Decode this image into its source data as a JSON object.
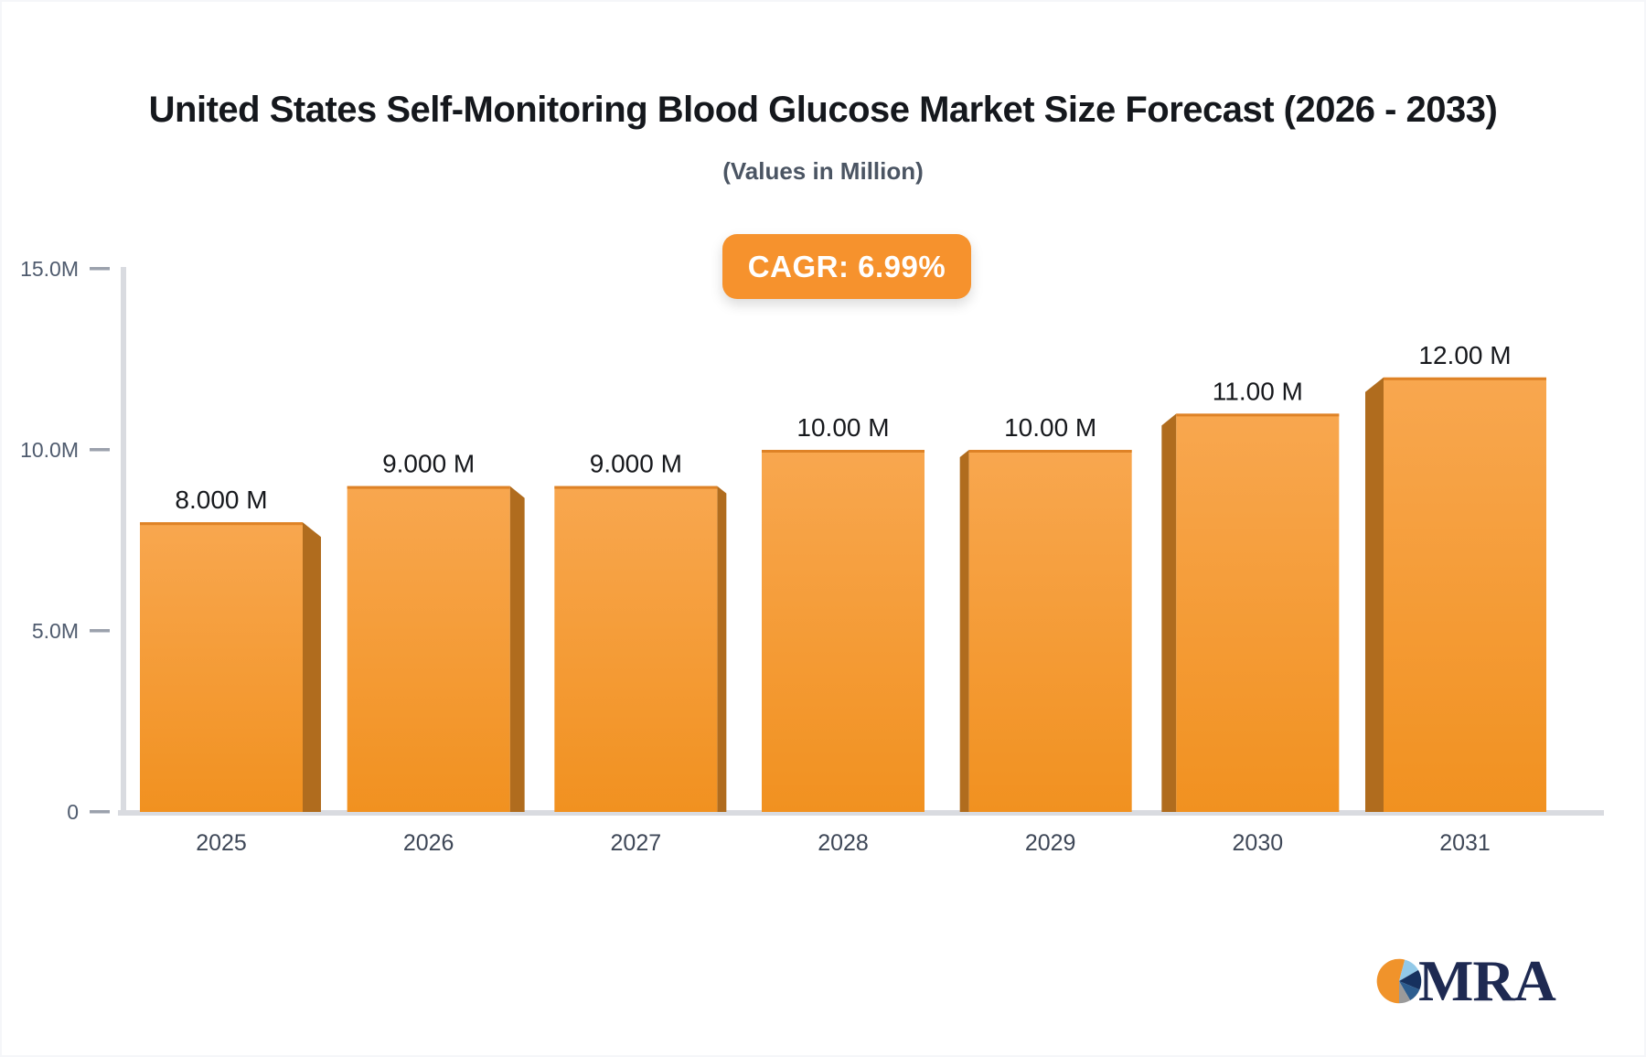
{
  "header": {
    "title": "United States Self-Monitoring Blood Glucose Market Size Forecast (2026 - 2033)",
    "subtitle": "(Values in Million)"
  },
  "cagr_badge": {
    "label": "CAGR: 6.99%",
    "background": "#f6922d",
    "text_color": "#ffffff"
  },
  "chart_data": {
    "type": "bar",
    "title": "United States Self-Monitoring Blood Glucose Market Size Forecast (2026 - 2033)",
    "subtitle": "(Values in Million)",
    "unit": "Million",
    "cagr": "6.99%",
    "categories": [
      "2025",
      "2026",
      "2027",
      "2028",
      "2029",
      "2030",
      "2031"
    ],
    "values": [
      8,
      9,
      9,
      10,
      10,
      11,
      12
    ],
    "value_labels": [
      "8.000 M",
      "9.000 M",
      "9.000 M",
      "10.00 M",
      "10.00 M",
      "11.00 M",
      "12.00 M"
    ],
    "y_axis": {
      "min": 0,
      "max": 15,
      "ticks": [
        {
          "value": 15,
          "label": "15.0M"
        },
        {
          "value": 10,
          "label": "10.0M"
        },
        {
          "value": 5,
          "label": "5.0M"
        },
        {
          "value": 0,
          "label": "0"
        }
      ]
    },
    "grid": false,
    "legend": "none",
    "bar_style": "3d-column",
    "colors": {
      "bar_top": "#f8a74f",
      "bar_bottom": "#f19120",
      "bar_side": "#b06c1e",
      "bar_edge": "#de8226",
      "axis": "#d9dbe0",
      "tick": "#9ba1ac",
      "tick_label": "#4f5b6e",
      "category_label": "#3e4757",
      "value_label": "#16181c"
    }
  },
  "logo": {
    "text": "MRA",
    "text_color": "#1e2a52",
    "pie_colors": {
      "orange": "#f0932b",
      "light_blue": "#92c9e8",
      "navy": "#16315e",
      "steel_blue": "#2c5d8f",
      "gray": "#9a9a9a"
    }
  }
}
